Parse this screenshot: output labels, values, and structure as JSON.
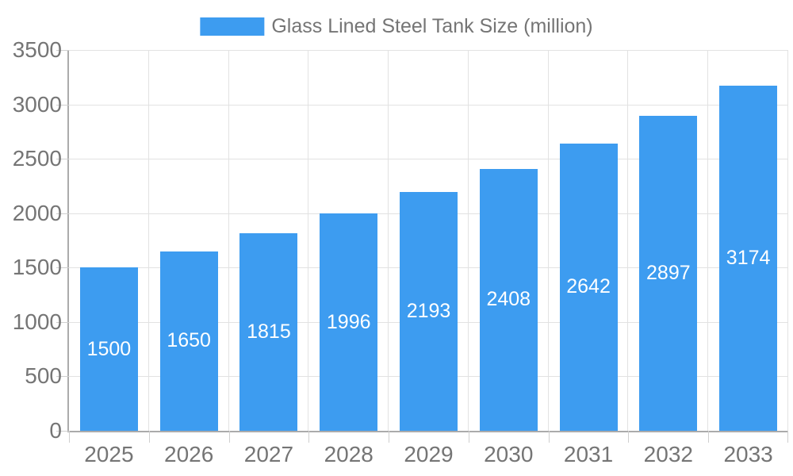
{
  "legend": {
    "label": "Glass Lined Steel Tank Size (million)"
  },
  "colors": {
    "bar": "#3D9CF0",
    "grid": "#E2E2E2",
    "axis": "#ABABAB",
    "tick": "#CFCFCF",
    "text": "#757575",
    "bar_label": "#FFFFFF",
    "background": "#FFFFFF"
  },
  "chart_data": {
    "type": "bar",
    "title": "Glass Lined Steel Tank Size (million)",
    "series_name": "Glass Lined Steel Tank Size (million)",
    "categories": [
      "2025",
      "2026",
      "2027",
      "2028",
      "2029",
      "2030",
      "2031",
      "2032",
      "2033"
    ],
    "values": [
      1500,
      1650,
      1815,
      1996,
      2193,
      2408,
      2642,
      2897,
      3174
    ],
    "xlabel": "",
    "ylabel": "",
    "ylim": [
      0,
      3500
    ],
    "ytick_step": 500,
    "yticks": [
      0,
      500,
      1000,
      1500,
      2000,
      2500,
      3000,
      3500
    ],
    "grid": true,
    "legend_position": "top",
    "bar_value_labels": "inside-center"
  }
}
